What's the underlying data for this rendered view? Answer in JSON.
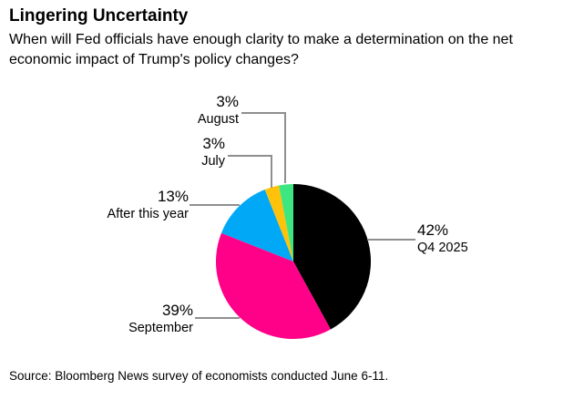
{
  "header": {
    "title": "Lingering Uncertainty",
    "subtitle": "When will Fed officials have enough clarity to make a determination on the net economic impact of Trump's policy changes?"
  },
  "source": "Source: Bloomberg News survey of economists conducted June 6-11.",
  "chart_data": {
    "type": "pie",
    "title": "Lingering Uncertainty",
    "subtitle": "When will Fed officials have enough clarity to make a determination on the net economic impact of Trump's policy changes?",
    "unit": "%",
    "direction": "clockwise",
    "start_angle_deg": 0,
    "slices": [
      {
        "label": "Q4 2025",
        "value": 42,
        "pct_label": "42%",
        "color": "#000000"
      },
      {
        "label": "September",
        "value": 39,
        "pct_label": "39%",
        "color": "#FF0088"
      },
      {
        "label": "After this year",
        "value": 13,
        "pct_label": "13%",
        "color": "#01A8F6"
      },
      {
        "label": "July",
        "value": 3,
        "pct_label": "3%",
        "color": "#FFC20A"
      },
      {
        "label": "August",
        "value": 3,
        "pct_label": "3%",
        "color": "#3EE681"
      }
    ],
    "leader_line_color": "#8F8F8F",
    "legend_position": "callout-labels"
  }
}
